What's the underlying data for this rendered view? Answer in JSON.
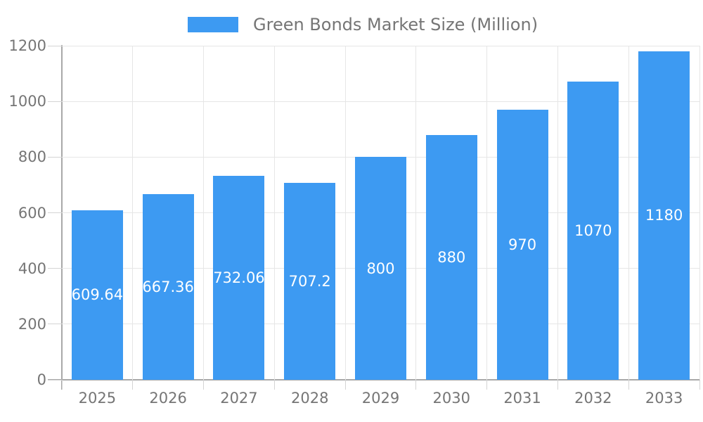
{
  "chart_data": {
    "type": "bar",
    "title": "Green Bonds Market Size (Million)",
    "xlabel": "",
    "ylabel": "",
    "categories": [
      "2025",
      "2026",
      "2027",
      "2028",
      "2029",
      "2030",
      "2031",
      "2032",
      "2033"
    ],
    "series": [
      {
        "name": "Green Bonds Market Size (Million)",
        "values": [
          609.64,
          667.36,
          732.06,
          707.2,
          800,
          880,
          970,
          1070,
          1180
        ]
      }
    ],
    "value_labels": [
      "609.64",
      "667.36",
      "732.06",
      "707.2",
      "800",
      "880",
      "970",
      "1070",
      "1180"
    ],
    "ylim": [
      0,
      1200
    ],
    "yticks": [
      0,
      200,
      400,
      600,
      800,
      1000,
      1200
    ],
    "ytick_labels": [
      "0",
      "200",
      "400",
      "600",
      "800",
      "1000",
      "1200"
    ],
    "grid": true,
    "legend_position": "top",
    "colors": {
      "bar": "#3D9AF2",
      "value_label": "#ffffff",
      "axis_text": "#757575",
      "gridline": "#e6e6e6",
      "axis_line": "#a8a8a8",
      "tick": "#d4d4d4"
    }
  }
}
